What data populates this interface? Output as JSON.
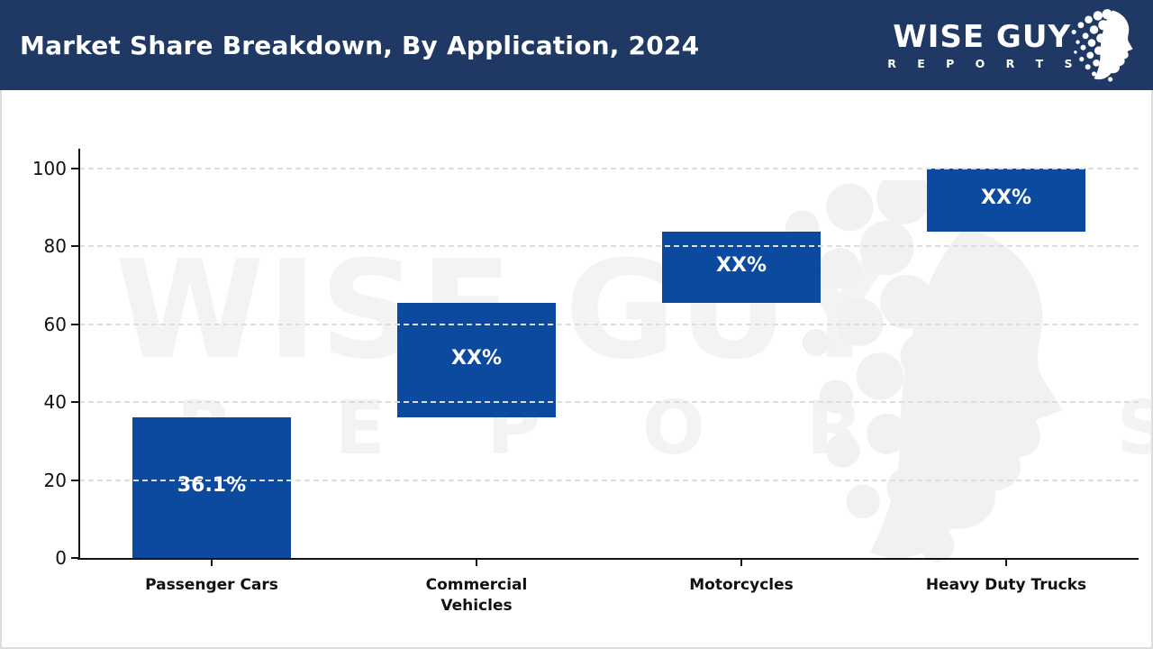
{
  "header": {
    "title": "Market Share Breakdown, By Application, 2024",
    "logo": {
      "line1": "WISE GUY",
      "line2": "R E P O R T S"
    }
  },
  "watermark": {
    "line1": "WISE GUY",
    "line2": "R E P O R T S"
  },
  "chart_data": {
    "type": "bar",
    "variant": "floating-segment-waterfall",
    "title": "Market Share Breakdown, By Application, 2024",
    "categories": [
      "Passenger Cars",
      "Commercial Vehicles",
      "Motorcycles",
      "Heavy Duty Trucks"
    ],
    "category_display": [
      "Passenger Cars",
      "Commercial\nVehicles",
      "Motorcycles",
      "Heavy Duty Trucks"
    ],
    "segments": [
      {
        "category": "Passenger Cars",
        "start": 0,
        "end": 36.1,
        "label": "36.1%"
      },
      {
        "category": "Commercial Vehicles",
        "start": 36.1,
        "end": 65.5,
        "label": "XX%"
      },
      {
        "category": "Motorcycles",
        "start": 65.5,
        "end": 83.8,
        "label": "XX%"
      },
      {
        "category": "Heavy Duty Trucks",
        "start": 83.8,
        "end": 100,
        "label": "XX%"
      }
    ],
    "yticks": [
      0,
      20,
      40,
      60,
      80,
      100
    ],
    "ylim": [
      0,
      105
    ],
    "xlabel": "",
    "ylabel": "",
    "grid": "horizontal-dashed",
    "legend": "none",
    "colors": {
      "bar": "#0b4a9e",
      "bar_label": "#ffffff",
      "axis": "#111111",
      "gridline": "#dedede",
      "header_bg": "#1f3864",
      "watermark": "#f3f3f3"
    }
  }
}
